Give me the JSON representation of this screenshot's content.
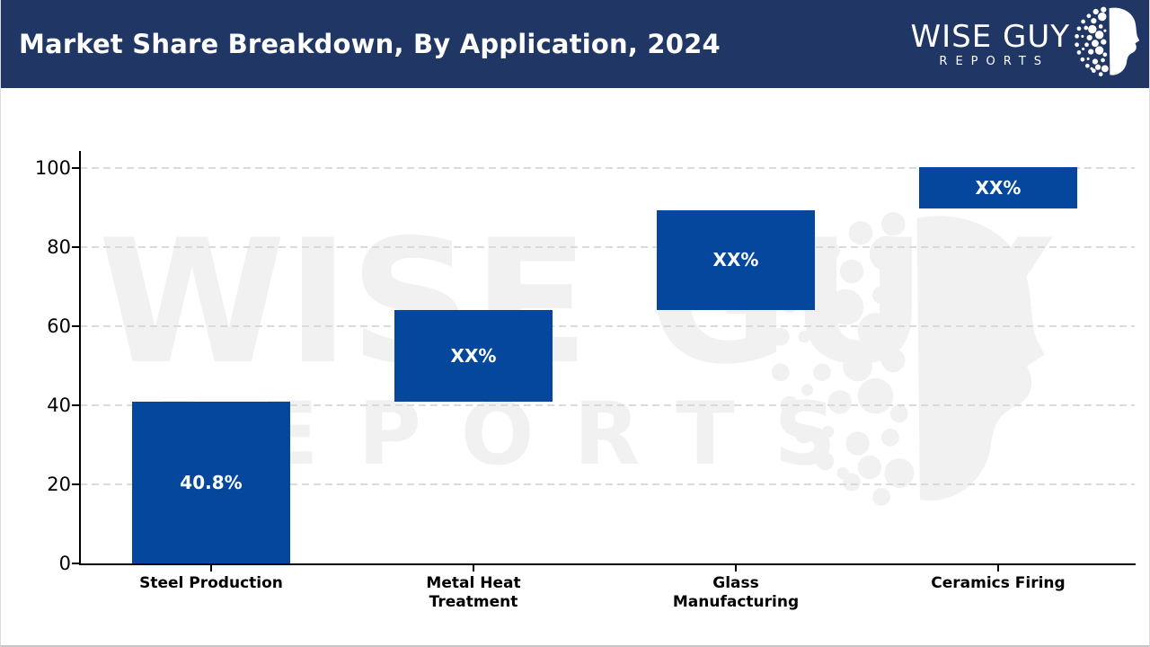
{
  "header": {
    "title": "Market Share Breakdown, By Application, 2024",
    "logo": {
      "name": "WISE GUY",
      "subtitle": "REPORTS"
    }
  },
  "watermark": {
    "name": "WISE GUY",
    "subtitle": "REPORTS"
  },
  "chart_data": {
    "type": "bar",
    "subtype": "waterfall",
    "title": "Market Share Breakdown, By Application, 2024",
    "categories": [
      "Steel Production",
      "Metal Heat\nTreatment",
      "Glass\nManufacturing",
      "Ceramics Firing"
    ],
    "segments": [
      {
        "category": "Steel Production",
        "start": 0,
        "end": 40.8,
        "label": "40.8%"
      },
      {
        "category": "Metal Heat Treatment",
        "start": 40.8,
        "end": 64.2,
        "label": "XX%"
      },
      {
        "category": "Glass Manufacturing",
        "start": 64.2,
        "end": 89.4,
        "label": "XX%"
      },
      {
        "category": "Ceramics Firing",
        "start": 89.8,
        "end": 100.2,
        "label": "XX%"
      }
    ],
    "xlabel": "",
    "ylabel": "",
    "y_ticks": [
      0,
      20,
      40,
      60,
      80,
      100
    ],
    "ylim": [
      0,
      104
    ],
    "grid": "horizontal-dashed",
    "legend": "none",
    "colors": {
      "bar": "#04479c",
      "bar_label": "#ffffff",
      "grid": "#dadada",
      "axis": "#000000",
      "header_bg": "#203664",
      "watermark": "#f1f1f1"
    }
  }
}
